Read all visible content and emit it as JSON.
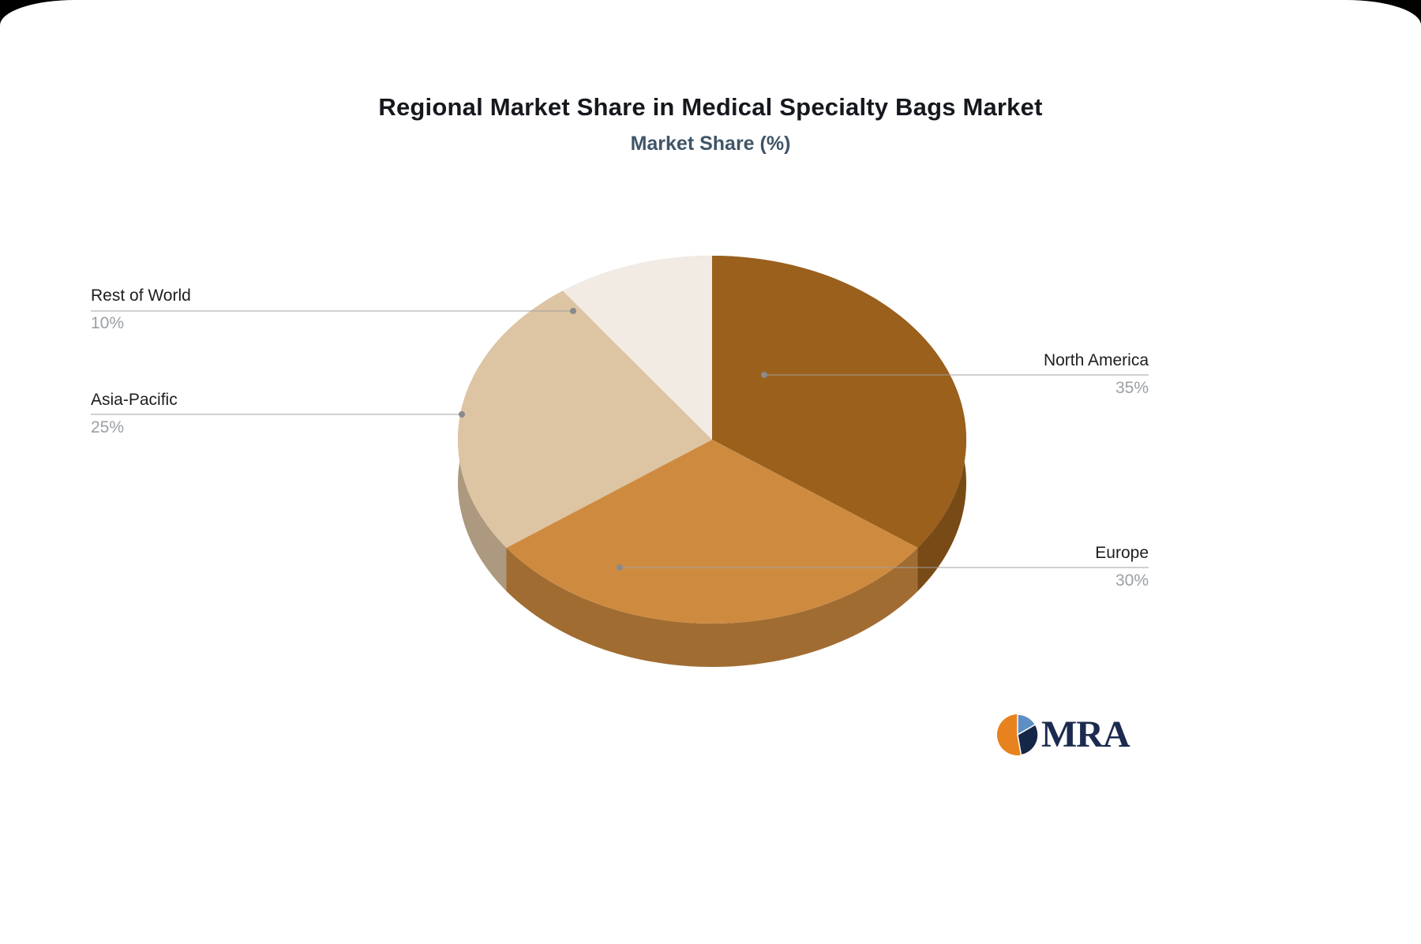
{
  "title": "Regional Market Share in Medical Specialty Bags Market",
  "subtitle": "Market Share (%)",
  "chart_data": {
    "type": "pie",
    "style": "3d-pie",
    "title": "Regional Market Share in Medical Specialty Bags Market",
    "subtitle": "Market Share (%)",
    "unit": "%",
    "categories": [
      "North America",
      "Europe",
      "Asia-Pacific",
      "Rest of World"
    ],
    "values": [
      35,
      30,
      25,
      10
    ],
    "colors": [
      "#9A601C",
      "#CE8B40",
      "#DDC4A3",
      "#F2EBE3"
    ],
    "start_angle_deg": 0,
    "direction": "clockwise",
    "legend_position": "none",
    "labels_layout": "callout-lines"
  },
  "callouts": [
    {
      "name": "North America",
      "value": "35%",
      "side": "right"
    },
    {
      "name": "Europe",
      "value": "30%",
      "side": "right"
    },
    {
      "name": "Asia-Pacific",
      "value": "25%",
      "side": "left"
    },
    {
      "name": "Rest of World",
      "value": "10%",
      "side": "left"
    }
  ],
  "logo": {
    "text": "MRA"
  }
}
